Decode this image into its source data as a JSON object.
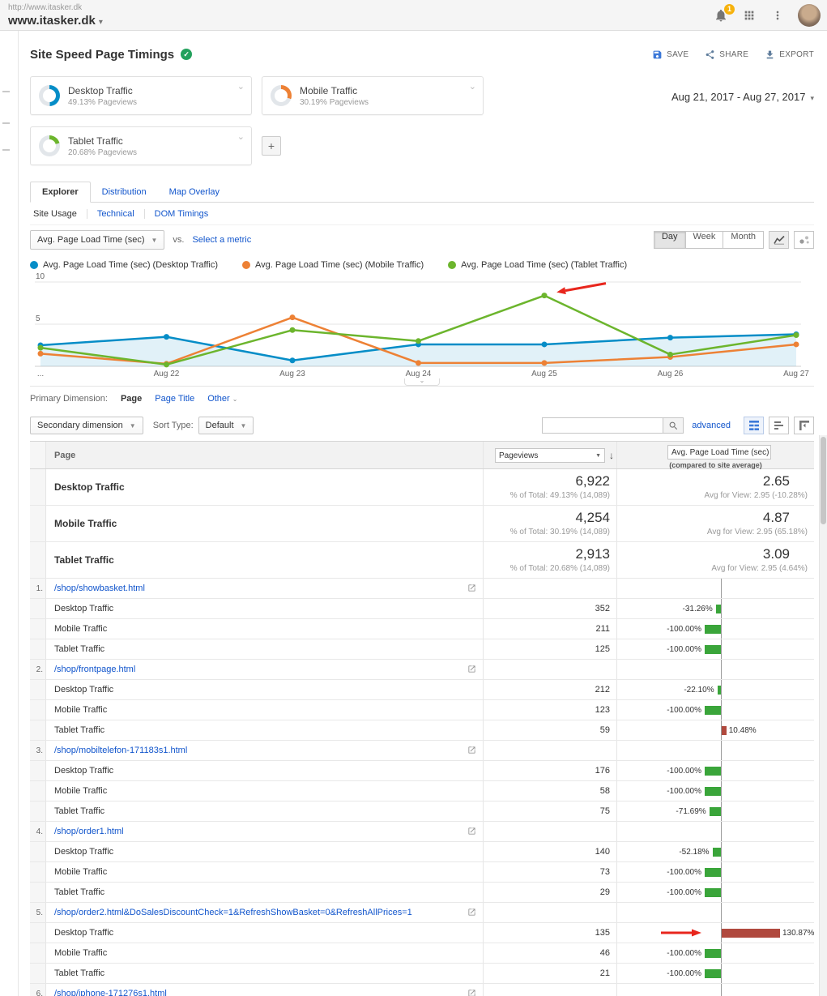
{
  "topbar": {
    "url": "http://www.itasker.dk",
    "title": "www.itasker.dk",
    "notification_count": "1"
  },
  "header": {
    "title": "Site Speed Page Timings",
    "actions": {
      "save": "SAVE",
      "share": "SHARE",
      "export": "EXPORT"
    }
  },
  "segments": {
    "cards": [
      {
        "title": "Desktop Traffic",
        "subtitle": "49.13% Pageviews",
        "color": "#058dc7",
        "pct": 49.13
      },
      {
        "title": "Mobile Traffic",
        "subtitle": "30.19% Pageviews",
        "color": "#ed8135",
        "pct": 30.19
      },
      {
        "title": "Tablet Traffic",
        "subtitle": "20.68% Pageviews",
        "color": "#6cb52d",
        "pct": 20.68
      }
    ],
    "add_label": "+"
  },
  "date_range": {
    "label": "Aug 21, 2017 - Aug 27, 2017"
  },
  "tabs": [
    {
      "label": "Explorer",
      "active": true
    },
    {
      "label": "Distribution",
      "active": false
    },
    {
      "label": "Map Overlay",
      "active": false
    }
  ],
  "subtabs": [
    {
      "label": "Site Usage",
      "active": true
    },
    {
      "label": "Technical",
      "active": false
    },
    {
      "label": "DOM Timings",
      "active": false
    }
  ],
  "metric_bar": {
    "metric_dropdown": "Avg. Page Load Time (sec)",
    "vs_label": "vs.",
    "select_metric_label": "Select a metric",
    "granularity": [
      {
        "label": "Day",
        "active": true
      },
      {
        "label": "Week",
        "active": false
      },
      {
        "label": "Month",
        "active": false
      }
    ]
  },
  "chart_data": {
    "type": "line",
    "x_labels": [
      "...",
      "Aug 22",
      "Aug 23",
      "Aug 24",
      "Aug 25",
      "Aug 26",
      "Aug 27"
    ],
    "ylim": [
      0,
      10
    ],
    "yticks": [
      5,
      10
    ],
    "grid": true,
    "legend_position": "top",
    "series": [
      {
        "name": "Avg. Page Load Time (sec) (Desktop Traffic)",
        "color": "#058dc7",
        "area": true,
        "values": [
          2.5,
          3.5,
          0.7,
          2.6,
          2.6,
          3.4,
          3.8
        ]
      },
      {
        "name": "Avg. Page Load Time (sec) (Mobile Traffic)",
        "color": "#ed8135",
        "area": false,
        "values": [
          1.5,
          0.3,
          5.8,
          0.4,
          0.4,
          1.1,
          2.6
        ]
      },
      {
        "name": "Avg. Page Load Time (sec) (Tablet Traffic)",
        "color": "#6cb52d",
        "area": false,
        "values": [
          2.2,
          0.2,
          4.3,
          3.0,
          8.4,
          1.4,
          3.7
        ]
      }
    ],
    "annotation": {
      "type": "arrow",
      "series_index": 2,
      "point_index": 4,
      "color": "#e8261d"
    }
  },
  "dimension_bar": {
    "label": "Primary Dimension:",
    "options": [
      {
        "label": "Page",
        "active": true
      },
      {
        "label": "Page Title",
        "active": false
      },
      {
        "label": "Other",
        "active": false,
        "caret": true
      }
    ]
  },
  "table_toolbar": {
    "secondary_dimension_label": "Secondary dimension",
    "sort_type_label": "Sort Type:",
    "sort_type_value": "Default",
    "search_value": "",
    "advanced_label": "advanced"
  },
  "table": {
    "columns": {
      "page": "Page",
      "pageviews": "Pageviews",
      "metric": "Avg. Page Load Time (sec)",
      "metric_sub": "(compared to site average)"
    },
    "bar_colors": {
      "negative": "#3aa53a",
      "positive": "#b0493e",
      "annotation": "#e8261d"
    },
    "summary_rows": [
      {
        "label": "Desktop Traffic",
        "views": "6,922",
        "views_sub": "% of Total: 49.13% (14,089)",
        "metric": "2.65",
        "metric_sub": "Avg for View: 2.95 (-10.28%)"
      },
      {
        "label": "Mobile Traffic",
        "views": "4,254",
        "views_sub": "% of Total: 30.19% (14,089)",
        "metric": "4.87",
        "metric_sub": "Avg for View: 2.95 (65.18%)"
      },
      {
        "label": "Tablet Traffic",
        "views": "2,913",
        "views_sub": "% of Total: 20.68% (14,089)",
        "metric": "3.09",
        "metric_sub": "Avg for View: 2.95 (4.64%)"
      }
    ],
    "groups": [
      {
        "index": "1.",
        "page": "/shop/showbasket.html",
        "rows": [
          {
            "label": "Desktop Traffic",
            "pageviews": "352",
            "pct": -31.26,
            "pct_label": "-31.26%"
          },
          {
            "label": "Mobile Traffic",
            "pageviews": "211",
            "pct": -100,
            "pct_label": "-100.00%"
          },
          {
            "label": "Tablet Traffic",
            "pageviews": "125",
            "pct": -100,
            "pct_label": "-100.00%"
          }
        ]
      },
      {
        "index": "2.",
        "page": "/shop/frontpage.html",
        "rows": [
          {
            "label": "Desktop Traffic",
            "pageviews": "212",
            "pct": -22.1,
            "pct_label": "-22.10%"
          },
          {
            "label": "Mobile Traffic",
            "pageviews": "123",
            "pct": -100,
            "pct_label": "-100.00%"
          },
          {
            "label": "Tablet Traffic",
            "pageviews": "59",
            "pct": 10.48,
            "pct_label": "10.48%"
          }
        ]
      },
      {
        "index": "3.",
        "page": "/shop/mobiltelefon-171183s1.html",
        "rows": [
          {
            "label": "Desktop Traffic",
            "pageviews": "176",
            "pct": -100,
            "pct_label": "-100.00%"
          },
          {
            "label": "Mobile Traffic",
            "pageviews": "58",
            "pct": -100,
            "pct_label": "-100.00%"
          },
          {
            "label": "Tablet Traffic",
            "pageviews": "75",
            "pct": -71.69,
            "pct_label": "-71.69%"
          }
        ]
      },
      {
        "index": "4.",
        "page": "/shop/order1.html",
        "rows": [
          {
            "label": "Desktop Traffic",
            "pageviews": "140",
            "pct": -52.18,
            "pct_label": "-52.18%"
          },
          {
            "label": "Mobile Traffic",
            "pageviews": "73",
            "pct": -100,
            "pct_label": "-100.00%"
          },
          {
            "label": "Tablet Traffic",
            "pageviews": "29",
            "pct": -100,
            "pct_label": "-100.00%"
          }
        ]
      },
      {
        "index": "5.",
        "page": "/shop/order2.html&DoSalesDiscountCheck=1&RefreshShowBasket=0&RefreshAllPrices=1",
        "rows": [
          {
            "label": "Desktop Traffic",
            "pageviews": "135",
            "pct": 130.87,
            "pct_label": "130.87%",
            "arrow": true
          },
          {
            "label": "Mobile Traffic",
            "pageviews": "46",
            "pct": -100,
            "pct_label": "-100.00%"
          },
          {
            "label": "Tablet Traffic",
            "pageviews": "21",
            "pct": -100,
            "pct_label": "-100.00%"
          }
        ]
      },
      {
        "index": "6.",
        "page": "/shop/iphone-171276s1.html",
        "rows": []
      }
    ]
  }
}
